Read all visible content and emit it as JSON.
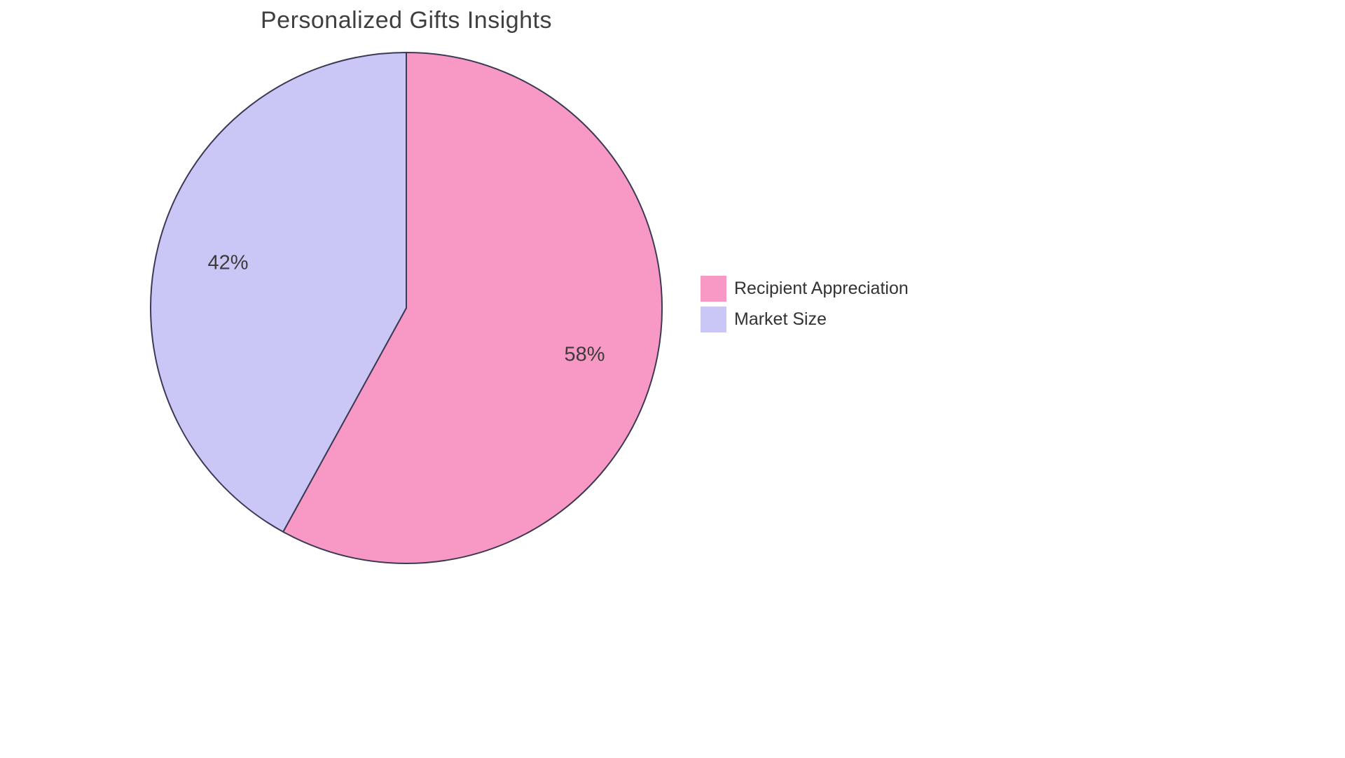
{
  "page": {
    "background": "#FFFFFF"
  },
  "chart_data": {
    "type": "pie",
    "title": "Personalized Gifts Insights",
    "slices": [
      {
        "label": "Recipient Appreciation",
        "value": 58,
        "pct_label": "58%",
        "color": "#F899C5"
      },
      {
        "label": "Market Size",
        "value": 42,
        "pct_label": "42%",
        "color": "#CAC6F6"
      }
    ],
    "start_angle_deg": 0,
    "direction": "clockwise",
    "stroke_color": "#3B3A55",
    "label_color": "#3C3C3C",
    "legend_position": "right",
    "grid": "off"
  }
}
